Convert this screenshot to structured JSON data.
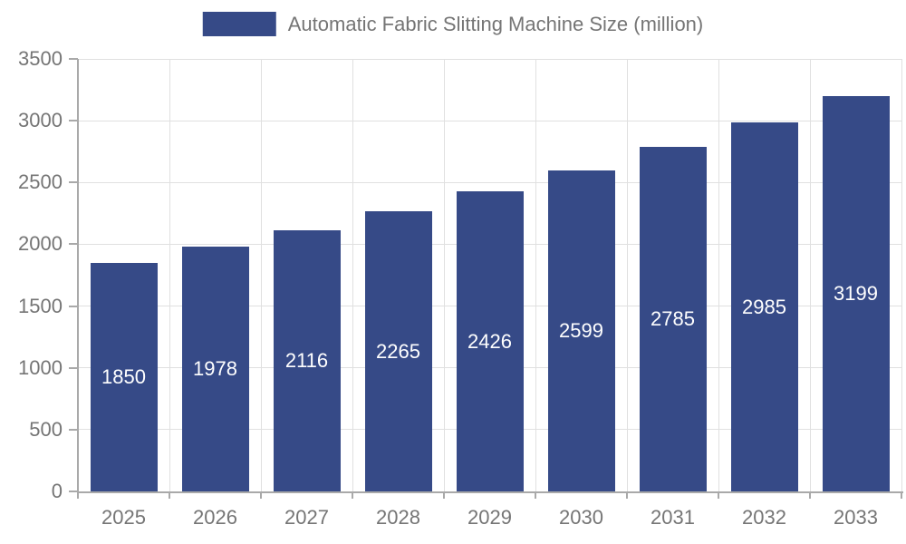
{
  "chart_data": {
    "type": "bar",
    "categories": [
      "2025",
      "2026",
      "2027",
      "2028",
      "2029",
      "2030",
      "2031",
      "2032",
      "2033"
    ],
    "series": [
      {
        "name": "Automatic Fabric Slitting Machine Size (million)",
        "values": [
          1850,
          1978,
          2116,
          2265,
          2426,
          2599,
          2785,
          2985,
          3199
        ]
      }
    ],
    "xlabel": "",
    "ylabel": "",
    "ylim": [
      0,
      3500
    ],
    "ytick_step": 500,
    "ytick_labels": [
      "0",
      "500",
      "1000",
      "1500",
      "2000",
      "2500",
      "3000",
      "3500"
    ],
    "grid": true,
    "legend_position": "top-center",
    "value_labels": "inside-center"
  },
  "colors": {
    "bar": "#364A87",
    "grid_line": "#E0E0E0",
    "axis_line": "#A9A9A9",
    "axis_text": "#757575",
    "bar_label_text": "#FFFFFF",
    "background": "#FFFFFF"
  }
}
